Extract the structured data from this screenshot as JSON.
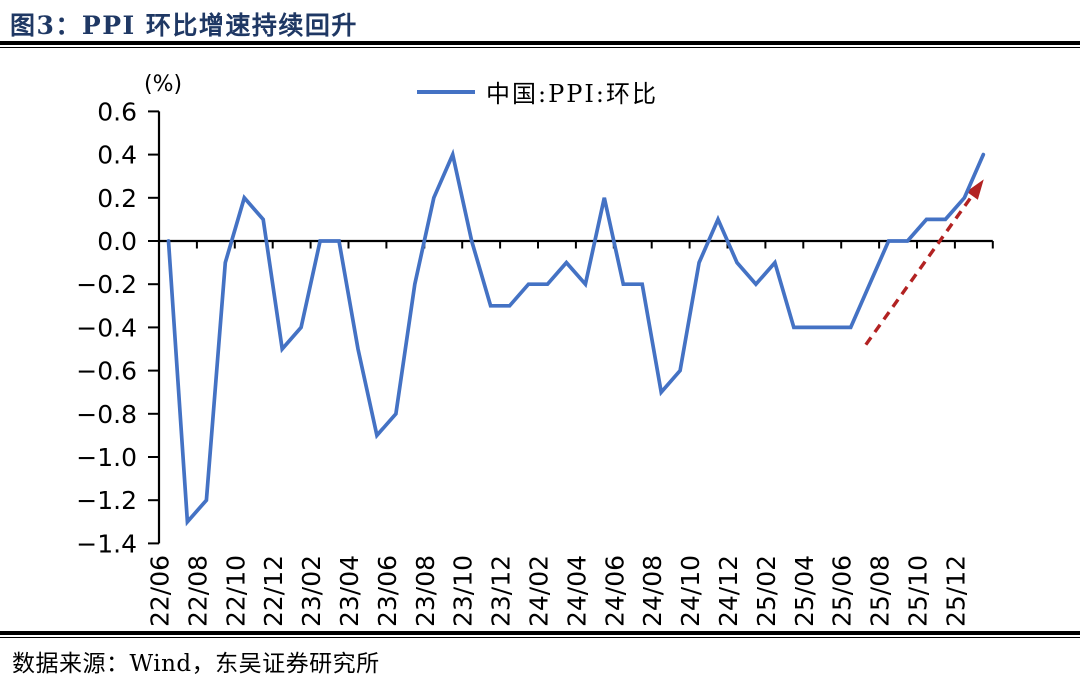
{
  "figure": {
    "title": "图3：PPI 环比增速持续回升",
    "source": "数据来源：Wind，东吴证券研究所"
  },
  "colors": {
    "title_navy": "#1F3864",
    "line_blue": "#4472C4",
    "arrow_red": "#B22222",
    "axis_black": "#000000"
  },
  "chart_data": {
    "type": "line",
    "title": "图3：PPI 环比增速持续回升",
    "ylabel_unit": "(%)",
    "grid": false,
    "legend_position": "top-center",
    "ylim": [
      -1.4,
      0.6
    ],
    "ytick_step": 0.2,
    "ytick_labels": [
      "0.6",
      "0.4",
      "0.2",
      "0.0",
      "−0.2",
      "−0.4",
      "−0.6",
      "−0.8",
      "−1.0",
      "−1.2",
      "−1.4"
    ],
    "x": [
      "22/06",
      "22/07",
      "22/08",
      "22/09",
      "22/10",
      "22/11",
      "22/12",
      "23/01",
      "23/02",
      "23/03",
      "23/04",
      "23/05",
      "23/06",
      "23/07",
      "23/08",
      "23/09",
      "23/10",
      "23/11",
      "23/12",
      "24/01",
      "24/02",
      "24/03",
      "24/04",
      "24/05",
      "24/06",
      "24/07",
      "24/08",
      "24/09",
      "24/10",
      "24/11",
      "24/12",
      "25/01",
      "25/02",
      "25/03",
      "25/04",
      "25/05",
      "25/06",
      "25/07",
      "25/08",
      "25/09",
      "25/10",
      "25/11",
      "25/12",
      "26/01"
    ],
    "xtick_labels": [
      "22/06",
      "22/08",
      "22/10",
      "22/12",
      "23/02",
      "23/04",
      "23/06",
      "23/08",
      "23/10",
      "23/12",
      "24/02",
      "24/04",
      "24/06",
      "24/08",
      "24/10",
      "24/12",
      "25/02",
      "25/04",
      "25/06",
      "25/08",
      "25/10",
      "25/12"
    ],
    "series": [
      {
        "name": "中国:PPI:环比",
        "color": "#4472C4",
        "values": [
          0.0,
          -1.3,
          -1.2,
          -0.1,
          0.2,
          0.1,
          -0.5,
          -0.4,
          0.0,
          0.0,
          -0.5,
          -0.9,
          -0.8,
          -0.2,
          0.2,
          0.4,
          0.0,
          -0.3,
          -0.3,
          -0.2,
          -0.2,
          -0.1,
          -0.2,
          0.2,
          -0.2,
          -0.2,
          -0.7,
          -0.6,
          -0.1,
          0.1,
          -0.1,
          -0.2,
          -0.1,
          -0.4,
          -0.4,
          -0.4,
          -0.4,
          -0.2,
          0.0,
          0.0,
          0.1,
          0.1,
          0.2,
          0.4
        ]
      }
    ],
    "annotation_arrow": {
      "style": "dashed",
      "color": "#B22222",
      "from_month_index": 37.3,
      "from_value": -0.48,
      "to_month_index": 43.4,
      "to_value": 0.27
    }
  }
}
